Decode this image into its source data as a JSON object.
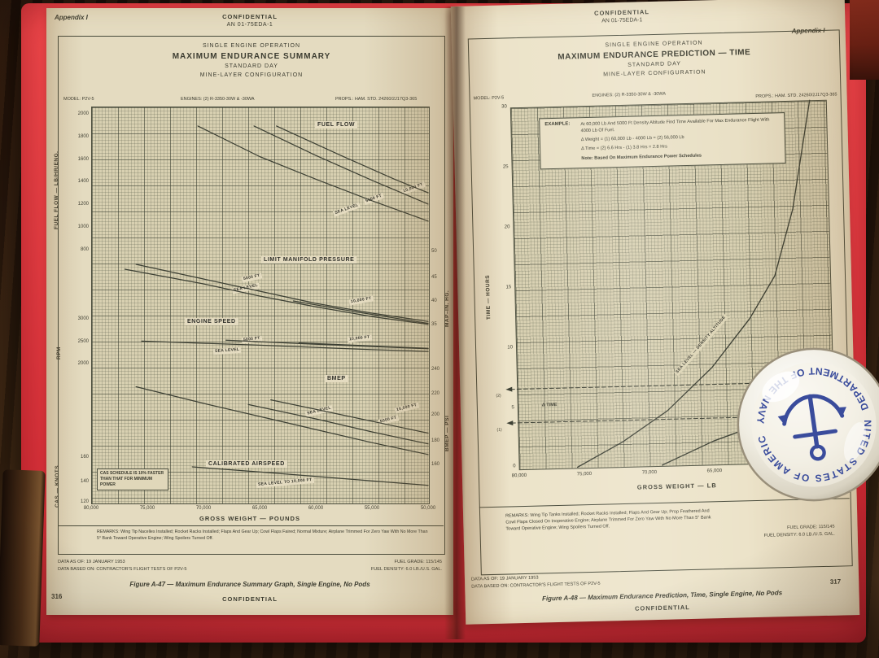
{
  "left_page": {
    "appendix": "Appendix I",
    "classification": "CONFIDENTIAL",
    "doc_number": "AN 01-75EDA-1",
    "title_lines": [
      "SINGLE ENGINE OPERATION",
      "MAXIMUM ENDURANCE SUMMARY",
      "STANDARD DAY",
      "MINE-LAYER CONFIGURATION"
    ],
    "model": "MODEL: P2V-5",
    "engines": "ENGINES: (2) R-3350-30W & -30WA",
    "props": "PROPS.: HAM. STD. 24260/2J17Q3-365",
    "axes": {
      "fuel_flow_label": "FUEL FLOW — LB/HR/ENG.",
      "fuel_flow_ticks": [
        "2000",
        "1800",
        "1600",
        "1400",
        "1200",
        "1000",
        "800"
      ],
      "rpm_label": "RPM",
      "rpm_ticks": [
        "3000",
        "2500",
        "2000"
      ],
      "cas_label": "CAS — KNOTS",
      "cas_ticks": [
        "160",
        "140",
        "120"
      ],
      "map_label": "MAP–IN. HG.",
      "map_ticks": [
        "50",
        "45",
        "40",
        "35"
      ],
      "bmep_label": "BMEP — PSI",
      "bmep_ticks": [
        "240",
        "220",
        "200",
        "180",
        "160"
      ],
      "x_ticks": [
        "80,000",
        "75,000",
        "70,000",
        "65,000",
        "60,000",
        "55,000",
        "50,000"
      ],
      "x_label": "GROSS WEIGHT — POUNDS"
    },
    "note": "CAS SCHEDULE IS 10% FASTER THAN THAT FOR MINIMUM POWER",
    "remarks": "REMARKS:  Wing Tip Nacelles Installed; Rocket Racks Installed; Flaps And Gear Up; Cowl Flaps Faired; Normal Mixture; Airplane Trimmed For Zero Yaw With No More Than 5° Bank Toward Operative Engine; Wing Spoilers Turned Off.",
    "data_as_of": "DATA AS OF: 19 JANUARY 1953",
    "data_based_on": "DATA BASED ON: CONTRACTOR'S FLIGHT TESTS OF P2V-5",
    "fuel_grade": "FUEL GRADE: 115/145",
    "fuel_density": "FUEL DENSITY: 6.0 LB./U.S. GAL.",
    "figure_caption": "Figure A-47 — Maximum Endurance Summary Graph, Single Engine, No Pods",
    "page_number": "316",
    "footer_classification": "CONFIDENTIAL"
  },
  "right_page": {
    "appendix": "Appendix I",
    "classification": "CONFIDENTIAL",
    "doc_number": "AN 01-75EDA-1",
    "title_lines": [
      "SINGLE ENGINE OPERATION",
      "MAXIMUM ENDURANCE PREDICTION — TIME",
      "STANDARD DAY",
      "MINE-LAYER CONFIGURATION"
    ],
    "model": "MODEL: P2V-5",
    "engines": "ENGINES: (2) R-3350-30W & -30WA",
    "props": "PROPS.: HAM. STD. 24260/2J17Q3-365",
    "example": {
      "label": "EXAMPLE:",
      "intro": "At 60,000 Lb And 5000 Ft Density Altitude Find Time Available For Max Endurance Flight With 4000 Lb Of Fuel.",
      "weight_line": "Δ Weight = (1) 60,000 Lb - 4000 Lb = (2) 56,000 Lb",
      "time_line": "Δ Time = (2) 6.6 Hrs - (1) 3.8 Hrs = 2.8 Hrs",
      "note_line": "Note:  Based On Maximum Endurance Power Schedules"
    },
    "axes": {
      "y_label": "TIME — HOURS",
      "y_ticks": [
        "30",
        "25",
        "20",
        "15",
        "10",
        "5",
        "0"
      ],
      "x_ticks": [
        "80,000",
        "75,000",
        "70,000",
        "65,000",
        "60,000"
      ],
      "x_label": "GROSS WEIGHT — LB"
    },
    "annotations": {
      "p1": "(1)",
      "p2": "(2)",
      "delta_time": "Δ TIME",
      "delta_w": "Δ W"
    },
    "remarks": "REMARKS: Wing Tip Tanks Installed; Rocket Racks Installed; Flaps And Gear Up; Prop Feathered And Cowl Flaps Closed On Inoperative Engine; Airplane Trimmed For Zero Yaw With No More Than 5° Bank Toward Operative Engine; Wing Spoilers Turned Off.",
    "fuel_grade": "FUEL GRADE: 115/145",
    "fuel_density": "FUEL DENSITY: 6.0 LB./U.S. GAL.",
    "data_as_of": "DATA AS OF: 19 JANUARY 1953",
    "data_based_on": "DATA BASED ON: CONTRACTOR'S FLIGHT TESTS OF P2V-5",
    "figure_caption": "Figure A-48 — Maximum Endurance Prediction, Time, Single Engine, No Pods",
    "page_number": "317",
    "footer_classification": "CONFIDENTIAL"
  },
  "paperweight": {
    "outer_text_top": "UNITED STATES OF AMERICA",
    "outer_text_bottom": "★ DEPARTMENT OF THE NAVY ★",
    "emblem": "navy-anchor",
    "seal_blue": "#3a4c9c"
  },
  "colors": {
    "cover_red": "#e53e44",
    "paper_left": "#e4dbc0",
    "paper_right": "#ece3c9",
    "ink": "#3c3c30",
    "grid_major": "#3c4032",
    "grid_minor": "#606452",
    "seal_blue": "#3a4c9c"
  },
  "chart_data": [
    {
      "type": "line",
      "figure": "A-47",
      "title": "Maximum Endurance Summary, Single Engine, Standard Day, Mine-Layer Configuration",
      "x": {
        "label": "GROSS WEIGHT — POUNDS",
        "ticks": [
          80000,
          75000,
          70000,
          65000,
          60000,
          55000,
          50000
        ],
        "range": [
          80000,
          50000
        ]
      },
      "grid": true,
      "panels": [
        {
          "name": "FUEL FLOW",
          "ylabel": "FUEL FLOW — LB/HR/ENG.",
          "ylim": [
            800,
            2000
          ],
          "series": [
            {
              "name": "10,000 FT",
              "points": [
                [
                  63500,
                  1900
                ],
                [
                  58000,
                  1650
                ],
                [
                  53000,
                  1430
                ],
                [
                  50000,
                  1310
                ]
              ]
            },
            {
              "name": "5000 FT",
              "points": [
                [
                  65500,
                  1900
                ],
                [
                  60000,
                  1640
                ],
                [
                  55000,
                  1420
                ],
                [
                  50000,
                  1210
                ]
              ]
            },
            {
              "name": "SEA LEVEL",
              "points": [
                [
                  70500,
                  1900
                ],
                [
                  65000,
                  1630
                ],
                [
                  60000,
                  1430
                ],
                [
                  55000,
                  1240
                ],
                [
                  50000,
                  1060
                ]
              ]
            }
          ]
        },
        {
          "name": "LIMIT MANIFOLD PRESSURE",
          "ylabel": "MAP–IN. HG.",
          "ylim": [
            35,
            50
          ],
          "series": [
            {
              "name": "5000 FT",
              "points": [
                [
                  76000,
                  47.5
                ],
                [
                  70000,
                  44.5
                ],
                [
                  65000,
                  42
                ],
                [
                  60000,
                  39.5
                ],
                [
                  55000,
                  37.5
                ],
                [
                  50000,
                  35.8
                ]
              ]
            },
            {
              "name": "SEA LEVEL",
              "points": [
                [
                  77000,
                  46.5
                ],
                [
                  70000,
                  43.5
                ],
                [
                  65000,
                  41
                ],
                [
                  60000,
                  38.8
                ],
                [
                  55000,
                  36.8
                ],
                [
                  50000,
                  35.2
                ]
              ]
            },
            {
              "name": "10,000 FT",
              "points": [
                [
                  62000,
                  40
                ],
                [
                  56000,
                  37.6
                ],
                [
                  50000,
                  35.4
                ]
              ]
            }
          ]
        },
        {
          "name": "ENGINE SPEED",
          "ylabel": "RPM",
          "ylim": [
            2000,
            3000
          ],
          "series": [
            {
              "name": "5000 FT",
              "points": [
                [
                  68000,
                  2540
                ],
                [
                  60000,
                  2450
                ],
                [
                  55000,
                  2400
                ],
                [
                  50000,
                  2350
                ]
              ]
            },
            {
              "name": "SEA LEVEL",
              "points": [
                [
                  75500,
                  2520
                ],
                [
                  65000,
                  2430
                ],
                [
                  55000,
                  2330
                ],
                [
                  50000,
                  2290
                ]
              ]
            },
            {
              "name": "10,000 FT",
              "points": [
                [
                  61500,
                  2480
                ],
                [
                  55000,
                  2410
                ],
                [
                  50000,
                  2360
                ]
              ]
            }
          ]
        },
        {
          "name": "BMEP",
          "ylabel": "BMEP — PSI",
          "ylim": [
            160,
            240
          ],
          "series": [
            {
              "name": "SEA LEVEL",
              "points": [
                [
                  76000,
                  226
                ],
                [
                  70000,
                  212
                ],
                [
                  65000,
                  201
                ],
                [
                  60000,
                  190
                ],
                [
                  55000,
                  179
                ],
                [
                  50000,
                  169
                ]
              ]
            },
            {
              "name": "10,000 FT",
              "points": [
                [
                  64000,
                  215
                ],
                [
                  58000,
                  203
                ],
                [
                  52000,
                  191
                ],
                [
                  50000,
                  187
                ]
              ]
            },
            {
              "name": "5000 FT",
              "points": [
                [
                  66000,
                  211
                ],
                [
                  60000,
                  199
                ],
                [
                  55000,
                  188
                ],
                [
                  50000,
                  178
                ]
              ]
            }
          ]
        },
        {
          "name": "CALIBRATED AIRSPEED",
          "ylabel": "CAS — KNOTS",
          "ylim": [
            120,
            160
          ],
          "series": [
            {
              "name": "SEA LEVEL TO 10,000 FT",
              "points": [
                [
                  71000,
                  152
                ],
                [
                  65000,
                  147.5
                ],
                [
                  60000,
                  143.5
                ],
                [
                  55000,
                  139.5
                ],
                [
                  50000,
                  135.5
                ]
              ]
            }
          ]
        }
      ],
      "note": "CAS SCHEDULE IS 10% FASTER THAN THAT FOR MINIMUM POWER"
    },
    {
      "type": "line",
      "figure": "A-48",
      "title": "Maximum Endurance Prediction — Time, Single Engine, Standard Day, Mine-Layer Configuration",
      "x": {
        "label": "GROSS WEIGHT — LB",
        "ticks": [
          80000,
          75000,
          70000,
          65000,
          60000
        ],
        "range": [
          80000,
          55800
        ]
      },
      "y": {
        "label": "TIME — HOURS",
        "ticks": [
          0,
          5,
          10,
          15,
          20,
          25,
          30
        ],
        "range": [
          0,
          30
        ]
      },
      "grid": true,
      "series": [
        {
          "name": "SEA LEVEL — DENSITY ALTITUDE",
          "points": [
            [
              75500,
              0
            ],
            [
              72000,
              2
            ],
            [
              68500,
              4.5
            ],
            [
              65000,
              8
            ],
            [
              62000,
              12
            ],
            [
              60000,
              15.5
            ],
            [
              58500,
              21
            ],
            [
              57500,
              27
            ],
            [
              57000,
              30
            ]
          ]
        },
        {
          "name": "5000 FT",
          "points": [
            [
              69000,
              0
            ],
            [
              65000,
              1.9
            ],
            [
              62000,
              3
            ],
            [
              60000,
              3.8
            ],
            [
              58000,
              5
            ],
            [
              56000,
              6.6
            ],
            [
              55300,
              7.5
            ]
          ]
        }
      ],
      "example_points": {
        "p1": [
          60000,
          3.8
        ],
        "p2": [
          56000,
          6.6
        ]
      }
    }
  ]
}
